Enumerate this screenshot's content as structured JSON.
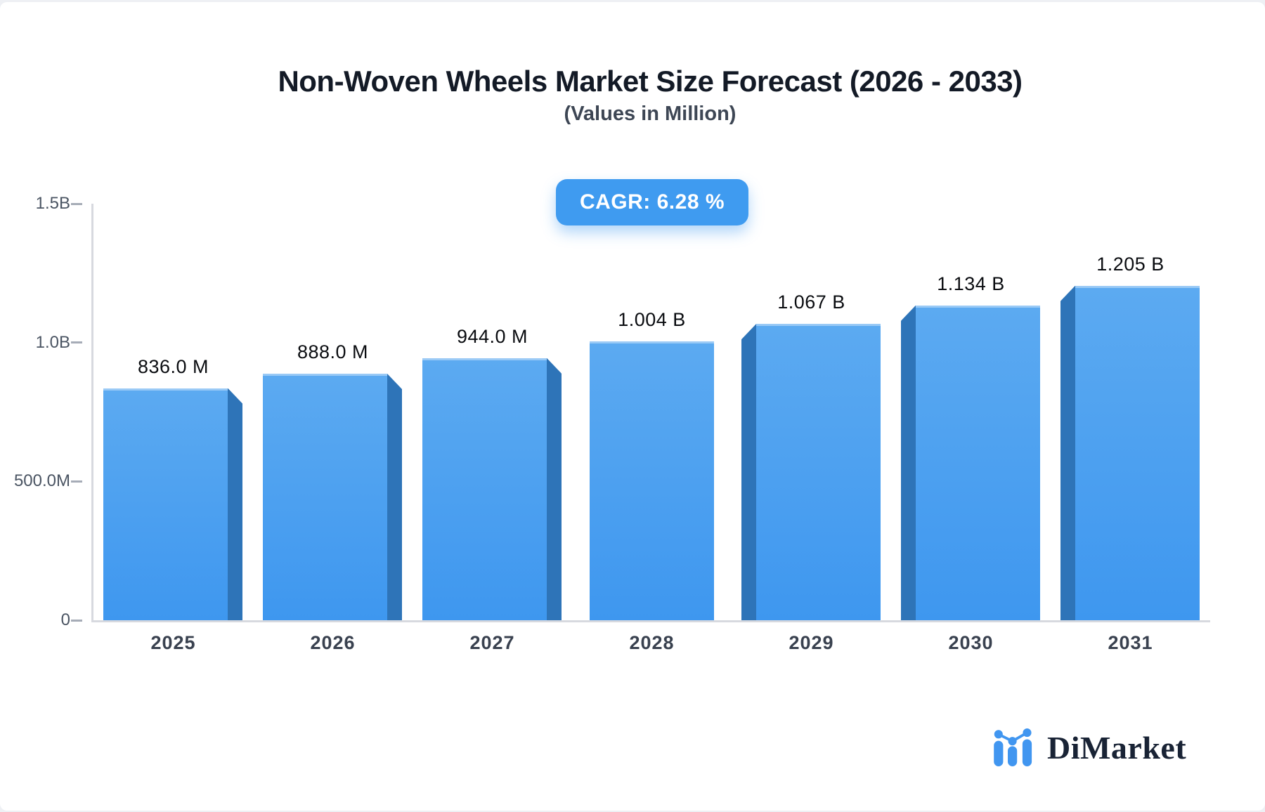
{
  "page": {
    "background": "#eef0f4",
    "card_background": "#ffffff"
  },
  "header": {
    "title": "Non-Woven Wheels Market Size Forecast (2026 - 2033)",
    "subtitle": "(Values in Million)"
  },
  "badge": {
    "label": "CAGR: 6.28 %",
    "background": "#3f9bf0",
    "text_color": "#ffffff"
  },
  "chart_data": {
    "type": "bar",
    "title": "Non-Woven Wheels Market Size Forecast (2026 - 2033)",
    "subtitle": "(Values in Million)",
    "categories": [
      "2025",
      "2026",
      "2027",
      "2028",
      "2029",
      "2030",
      "2031"
    ],
    "values_millions": [
      836,
      888,
      944,
      1004,
      1067,
      1134,
      1205
    ],
    "bar_labels": [
      "836.0 M",
      "888.0 M",
      "944.0 M",
      "1.004 B",
      "1.067 B",
      "1.134 B",
      "1.205 B"
    ],
    "y_ticks": [
      {
        "label": "1.5B",
        "value": 1500
      },
      {
        "label": "1.0B",
        "value": 1000
      },
      {
        "label": "500.0M",
        "value": 500
      },
      {
        "label": "0",
        "value": 0
      }
    ],
    "ylim": [
      0,
      1500
    ],
    "grid": false,
    "legend": false,
    "colors": {
      "bar_front_top": "#5caaf1",
      "bar_front_bottom": "#3e97ef",
      "bar_side": "#2e74b8",
      "axis_line": "#d7d9df",
      "tick": "#a6acb7",
      "value_label": "#0a0c10",
      "year_label": "#39414f",
      "y_label": "#4b5563"
    }
  },
  "logo": {
    "text": "DiMarket",
    "icon": "mini-bar-line-chart-logo-icon",
    "icon_color": "#4196f0",
    "text_color": "#192335"
  }
}
